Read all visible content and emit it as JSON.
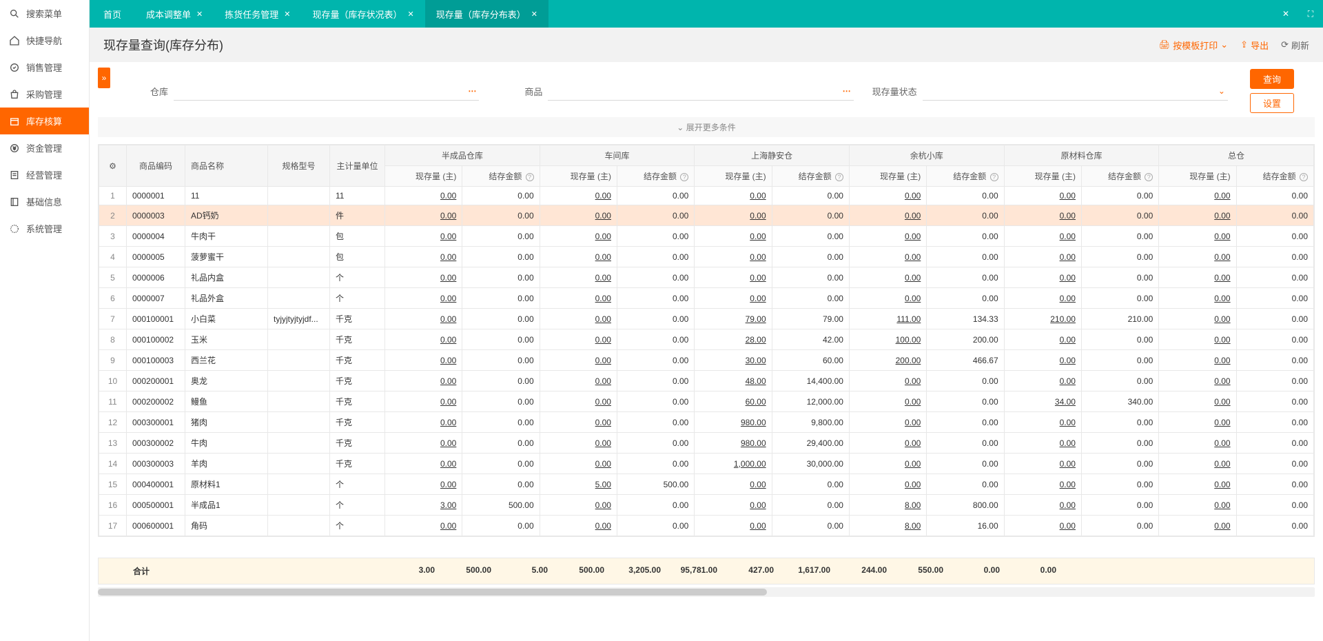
{
  "sidebar": {
    "items": [
      {
        "label": "搜索菜单",
        "icon": "search"
      },
      {
        "label": "快捷导航",
        "icon": "home"
      },
      {
        "label": "销售管理",
        "icon": "badge"
      },
      {
        "label": "采购管理",
        "icon": "bag"
      },
      {
        "label": "库存核算",
        "icon": "box",
        "active": true
      },
      {
        "label": "资金管理",
        "icon": "coin"
      },
      {
        "label": "经营管理",
        "icon": "report"
      },
      {
        "label": "基础信息",
        "icon": "book"
      },
      {
        "label": "系统管理",
        "icon": "gear"
      }
    ]
  },
  "tabs": [
    {
      "label": "首页",
      "closable": false
    },
    {
      "label": "成本调整单",
      "closable": true
    },
    {
      "label": "拣货任务管理",
      "closable": true
    },
    {
      "label": "现存量（库存状况表）",
      "closable": true
    },
    {
      "label": "现存量（库存分布表）",
      "closable": true,
      "active": true
    }
  ],
  "page": {
    "title": "现存量查询(库存分布)"
  },
  "headerActions": {
    "printTemplate": "按模板打印",
    "export": "导出",
    "refresh": "刷新"
  },
  "filters": {
    "warehouse": {
      "label": "仓库"
    },
    "product": {
      "label": "商品"
    },
    "stockStatus": {
      "label": "现存量状态"
    },
    "queryBtn": "查询",
    "settingsBtn": "设置",
    "expandMore": "展开更多条件"
  },
  "table": {
    "gearIcon": "⚙",
    "fixedHeaders": {
      "code": "商品编码",
      "name": "商品名称",
      "spec": "规格型号",
      "unit": "主计量单位"
    },
    "warehouseGroups": [
      "半成品仓库",
      "车间库",
      "上海静安仓",
      "余杭小库",
      "原材料仓库",
      "总仓"
    ],
    "subHeaders": {
      "qty": "现存量 (主)",
      "amt": "结存金额"
    },
    "rows": [
      {
        "idx": "1",
        "code": "0000001",
        "name": "11",
        "spec": "",
        "unit": "11",
        "vals": [
          "0.00",
          "0.00",
          "0.00",
          "0.00",
          "0.00",
          "0.00",
          "0.00",
          "0.00",
          "0.00",
          "0.00",
          "0.00",
          "0.00"
        ]
      },
      {
        "idx": "2",
        "code": "0000003",
        "name": "AD钙奶",
        "spec": "",
        "unit": "件",
        "highlight": true,
        "vals": [
          "0.00",
          "0.00",
          "0.00",
          "0.00",
          "0.00",
          "0.00",
          "0.00",
          "0.00",
          "0.00",
          "0.00",
          "0.00",
          "0.00"
        ]
      },
      {
        "idx": "3",
        "code": "0000004",
        "name": "牛肉干",
        "spec": "",
        "unit": "包",
        "vals": [
          "0.00",
          "0.00",
          "0.00",
          "0.00",
          "0.00",
          "0.00",
          "0.00",
          "0.00",
          "0.00",
          "0.00",
          "0.00",
          "0.00"
        ]
      },
      {
        "idx": "4",
        "code": "0000005",
        "name": "菠萝蜜干",
        "spec": "",
        "unit": "包",
        "vals": [
          "0.00",
          "0.00",
          "0.00",
          "0.00",
          "0.00",
          "0.00",
          "0.00",
          "0.00",
          "0.00",
          "0.00",
          "0.00",
          "0.00"
        ]
      },
      {
        "idx": "5",
        "code": "0000006",
        "name": "礼品内盒",
        "spec": "",
        "unit": "个",
        "vals": [
          "0.00",
          "0.00",
          "0.00",
          "0.00",
          "0.00",
          "0.00",
          "0.00",
          "0.00",
          "0.00",
          "0.00",
          "0.00",
          "0.00"
        ]
      },
      {
        "idx": "6",
        "code": "0000007",
        "name": "礼品外盒",
        "spec": "",
        "unit": "个",
        "vals": [
          "0.00",
          "0.00",
          "0.00",
          "0.00",
          "0.00",
          "0.00",
          "0.00",
          "0.00",
          "0.00",
          "0.00",
          "0.00",
          "0.00"
        ]
      },
      {
        "idx": "7",
        "code": "000100001",
        "name": "小白菜",
        "spec": "tyjyjtyjtyjdf...",
        "unit": "千克",
        "vals": [
          "0.00",
          "0.00",
          "0.00",
          "0.00",
          "79.00",
          "79.00",
          "111.00",
          "134.33",
          "210.00",
          "210.00",
          "0.00",
          "0.00"
        ]
      },
      {
        "idx": "8",
        "code": "000100002",
        "name": "玉米",
        "spec": "",
        "unit": "千克",
        "vals": [
          "0.00",
          "0.00",
          "0.00",
          "0.00",
          "28.00",
          "42.00",
          "100.00",
          "200.00",
          "0.00",
          "0.00",
          "0.00",
          "0.00"
        ]
      },
      {
        "idx": "9",
        "code": "000100003",
        "name": "西兰花",
        "spec": "",
        "unit": "千克",
        "vals": [
          "0.00",
          "0.00",
          "0.00",
          "0.00",
          "30.00",
          "60.00",
          "200.00",
          "466.67",
          "0.00",
          "0.00",
          "0.00",
          "0.00"
        ]
      },
      {
        "idx": "10",
        "code": "000200001",
        "name": "奥龙",
        "spec": "",
        "unit": "千克",
        "vals": [
          "0.00",
          "0.00",
          "0.00",
          "0.00",
          "48.00",
          "14,400.00",
          "0.00",
          "0.00",
          "0.00",
          "0.00",
          "0.00",
          "0.00"
        ]
      },
      {
        "idx": "11",
        "code": "000200002",
        "name": "鳗鱼",
        "spec": "",
        "unit": "千克",
        "vals": [
          "0.00",
          "0.00",
          "0.00",
          "0.00",
          "60.00",
          "12,000.00",
          "0.00",
          "0.00",
          "34.00",
          "340.00",
          "0.00",
          "0.00"
        ]
      },
      {
        "idx": "12",
        "code": "000300001",
        "name": "猪肉",
        "spec": "",
        "unit": "千克",
        "vals": [
          "0.00",
          "0.00",
          "0.00",
          "0.00",
          "980.00",
          "9,800.00",
          "0.00",
          "0.00",
          "0.00",
          "0.00",
          "0.00",
          "0.00"
        ]
      },
      {
        "idx": "13",
        "code": "000300002",
        "name": "牛肉",
        "spec": "",
        "unit": "千克",
        "vals": [
          "0.00",
          "0.00",
          "0.00",
          "0.00",
          "980.00",
          "29,400.00",
          "0.00",
          "0.00",
          "0.00",
          "0.00",
          "0.00",
          "0.00"
        ]
      },
      {
        "idx": "14",
        "code": "000300003",
        "name": "羊肉",
        "spec": "",
        "unit": "千克",
        "vals": [
          "0.00",
          "0.00",
          "0.00",
          "0.00",
          "1,000.00",
          "30,000.00",
          "0.00",
          "0.00",
          "0.00",
          "0.00",
          "0.00",
          "0.00"
        ]
      },
      {
        "idx": "15",
        "code": "000400001",
        "name": "原材料1",
        "spec": "",
        "unit": "个",
        "vals": [
          "0.00",
          "0.00",
          "5.00",
          "500.00",
          "0.00",
          "0.00",
          "0.00",
          "0.00",
          "0.00",
          "0.00",
          "0.00",
          "0.00"
        ]
      },
      {
        "idx": "16",
        "code": "000500001",
        "name": "半成品1",
        "spec": "",
        "unit": "个",
        "vals": [
          "3.00",
          "500.00",
          "0.00",
          "0.00",
          "0.00",
          "0.00",
          "8.00",
          "800.00",
          "0.00",
          "0.00",
          "0.00",
          "0.00"
        ]
      },
      {
        "idx": "17",
        "code": "000600001",
        "name": "角码",
        "spec": "",
        "unit": "个",
        "vals": [
          "0.00",
          "0.00",
          "0.00",
          "0.00",
          "0.00",
          "0.00",
          "8.00",
          "16.00",
          "0.00",
          "0.00",
          "0.00",
          "0.00"
        ]
      }
    ],
    "footer": {
      "label": "合计",
      "vals": [
        "3.00",
        "500.00",
        "5.00",
        "500.00",
        "3,205.00",
        "95,781.00",
        "427.00",
        "1,617.00",
        "244.00",
        "550.00",
        "0.00",
        "0.00"
      ]
    }
  },
  "colors": {
    "accent": "#ff6600",
    "tabBar": "#00b5ad",
    "tabActive": "#009d96",
    "highlightRow": "#ffe6d5",
    "footerBg": "#fff7e6"
  }
}
